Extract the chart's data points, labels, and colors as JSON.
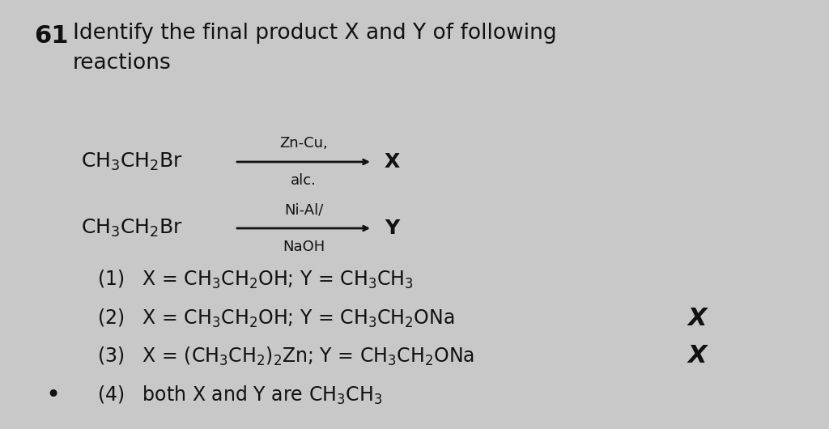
{
  "background_color": "#c8c8c8",
  "title_number": "61",
  "title_text": "Identify the final product X and Y of following\nreactions",
  "reaction1_reactant": "CH$_3$CH$_2$Br",
  "reaction1_above": "Zn-Cu,",
  "reaction1_below": "alc.",
  "reaction1_product": "X",
  "reaction2_reactant": "CH$_3$CH$_2$Br",
  "reaction2_above": "Ni-Al/",
  "reaction2_below": "NaOH",
  "reaction2_product": "Y",
  "opt1": "(1)   X = CH$_3$CH$_2$OH; Y = CH$_3$CH$_3$",
  "opt2": "(2)   X = CH$_3$CH$_2$OH; Y = CH$_3$CH$_2$ONa",
  "opt3": "(3)   X = (CH$_3$CH$_2$)$_2$Zn; Y = CH$_3$CH$_2$ONa",
  "opt4": "(4)   both X and Y are CH$_3$CH$_3$",
  "text_color": "#111111",
  "font_size_number": 22,
  "font_size_title": 19,
  "font_size_reaction": 18,
  "font_size_label": 13,
  "font_size_options": 17,
  "font_size_cross": 22
}
